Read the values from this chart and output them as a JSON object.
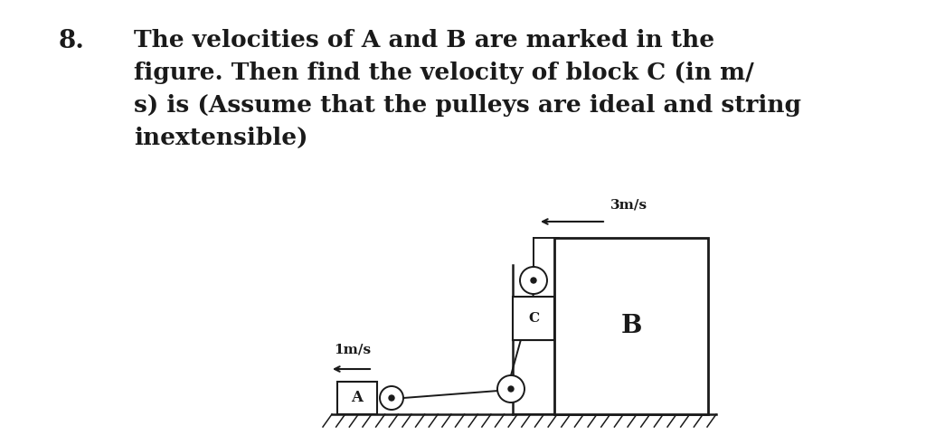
{
  "title_number": "8.",
  "title_text": "The velocities of A and B are marked in the\nfigure. Then find the velocity of block C (in m/\ns) is (Assume that the pulleys are ideal and string\ninextensible)",
  "bg_color": "#ffffff",
  "text_color": "#1a1a1a",
  "fig_width": 10.24,
  "fig_height": 4.92,
  "label_A": "A",
  "label_B": "B",
  "label_C": "C",
  "vel_A": "1m/s",
  "vel_B": "3m/s",
  "font_family": "DejaVu Serif"
}
